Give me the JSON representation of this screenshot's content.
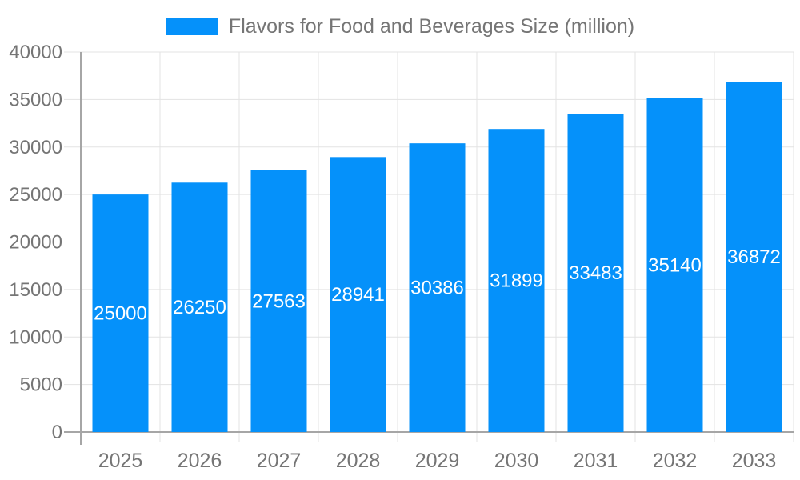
{
  "legend": {
    "label": "Flavors for Food and Beverages Size (million)"
  },
  "chart_data": {
    "type": "bar",
    "title": "Flavors for Food and Beverages Size (million)",
    "categories": [
      "2025",
      "2026",
      "2027",
      "2028",
      "2029",
      "2030",
      "2031",
      "2032",
      "2033"
    ],
    "series": [
      {
        "name": "Flavors for Food and Beverages Size (million)",
        "values": [
          25000,
          26250,
          27563,
          28941,
          30386,
          31899,
          33483,
          35140,
          36872
        ]
      }
    ],
    "xlabel": "",
    "ylabel": "",
    "ylim": [
      0,
      40000
    ],
    "yticks": [
      0,
      5000,
      10000,
      15000,
      20000,
      25000,
      30000,
      35000,
      40000
    ],
    "grid": true,
    "legend_position": "top",
    "value_labels": "inside-center",
    "colors": {
      "bar": "#0591fa",
      "grid": "#e3e3e3",
      "axis": "#a6a6a6",
      "tick_label": "#757575",
      "title": "#757575",
      "value_label": "#ffffff",
      "background": "#ffffff"
    }
  }
}
